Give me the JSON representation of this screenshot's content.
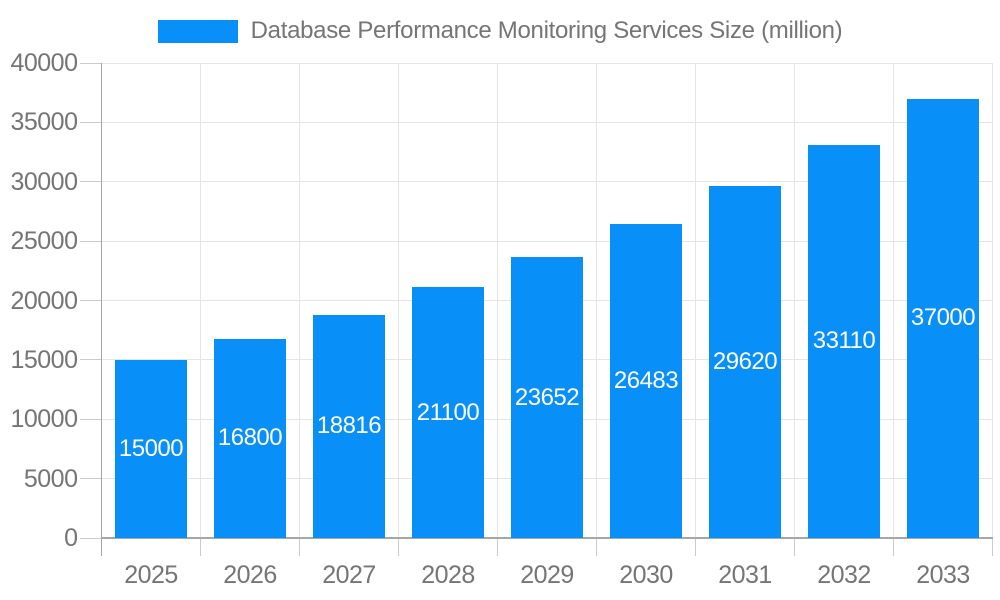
{
  "legend": {
    "label": "Database Performance Monitoring Services Size (million)"
  },
  "chart_data": {
    "type": "bar",
    "title": "Database Performance Monitoring Services Size (million)",
    "series_name": "Database Performance Monitoring Services Size (million)",
    "categories": [
      "2025",
      "2026",
      "2027",
      "2028",
      "2029",
      "2030",
      "2031",
      "2032",
      "2033"
    ],
    "values": [
      15000,
      16800,
      18816,
      21100,
      23652,
      26483,
      29620,
      33110,
      37000
    ],
    "value_labels": [
      "15000",
      "16800",
      "18816",
      "21100",
      "23652",
      "26483",
      "29620",
      "33110",
      "37000"
    ],
    "yticks": [
      "0",
      "5000",
      "10000",
      "15000",
      "20000",
      "25000",
      "30000",
      "35000",
      "40000"
    ],
    "ylim": [
      0,
      40000
    ],
    "xlabel": "",
    "ylabel": "",
    "grid": true,
    "legend_position": "top",
    "bar_color": "#0990f8",
    "bar_label_color": "#ffffff",
    "axis_label_color": "#757575",
    "grid_color": "#e5e5e5",
    "tick_color": "#cbcbcb",
    "axis_line_color": "#a6a6a6",
    "background_color": "#ffffff"
  }
}
